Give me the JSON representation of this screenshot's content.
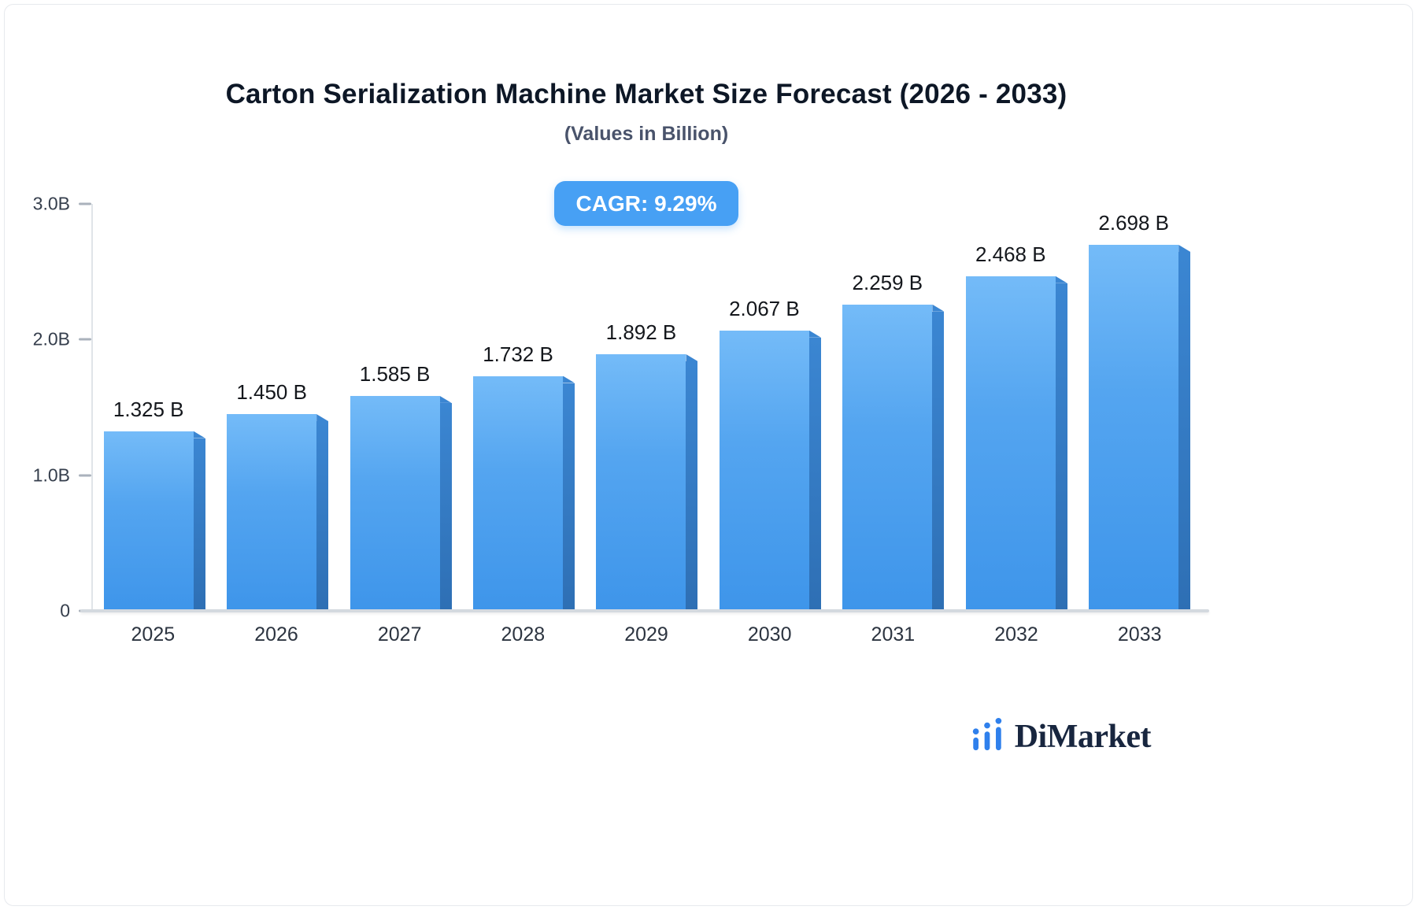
{
  "title": "Carton Serialization Machine Market Size Forecast (2026 - 2033)",
  "subtitle": "(Values in Billion)",
  "cagr_label": "CAGR: 9.29%",
  "brand": {
    "name": "DiMarket"
  },
  "icons": {
    "brand_icon": "bar-chart-icon"
  },
  "chart_data": {
    "type": "bar",
    "title": "Carton Serialization Machine Market Size Forecast (2026 - 2033)",
    "subtitle": "(Values in Billion)",
    "annotation": "CAGR: 9.29%",
    "categories": [
      "2025",
      "2026",
      "2027",
      "2028",
      "2029",
      "2030",
      "2031",
      "2032",
      "2033"
    ],
    "values": [
      1.325,
      1.45,
      1.585,
      1.732,
      1.892,
      2.067,
      2.259,
      2.468,
      2.698
    ],
    "value_labels": [
      "1.325 B",
      "1.450 B",
      "1.585 B",
      "1.732 B",
      "1.892 B",
      "2.067 B",
      "2.259 B",
      "2.468 B",
      "2.698 B"
    ],
    "xlabel": "",
    "ylabel": "",
    "ylim": [
      0,
      3.0
    ],
    "y_ticks": [
      "3.0B",
      "2.0B",
      "1.0B",
      "0"
    ],
    "grid": "off",
    "legend": "none",
    "colors": {
      "bar_top": "#74bbf8",
      "bar_bottom": "#3e95ea",
      "bar_side": "#2e6fb4",
      "accent_badge": "#47a0f4",
      "brand_text": "#18263f",
      "brand_icon_blue": "#2f80ec"
    }
  }
}
